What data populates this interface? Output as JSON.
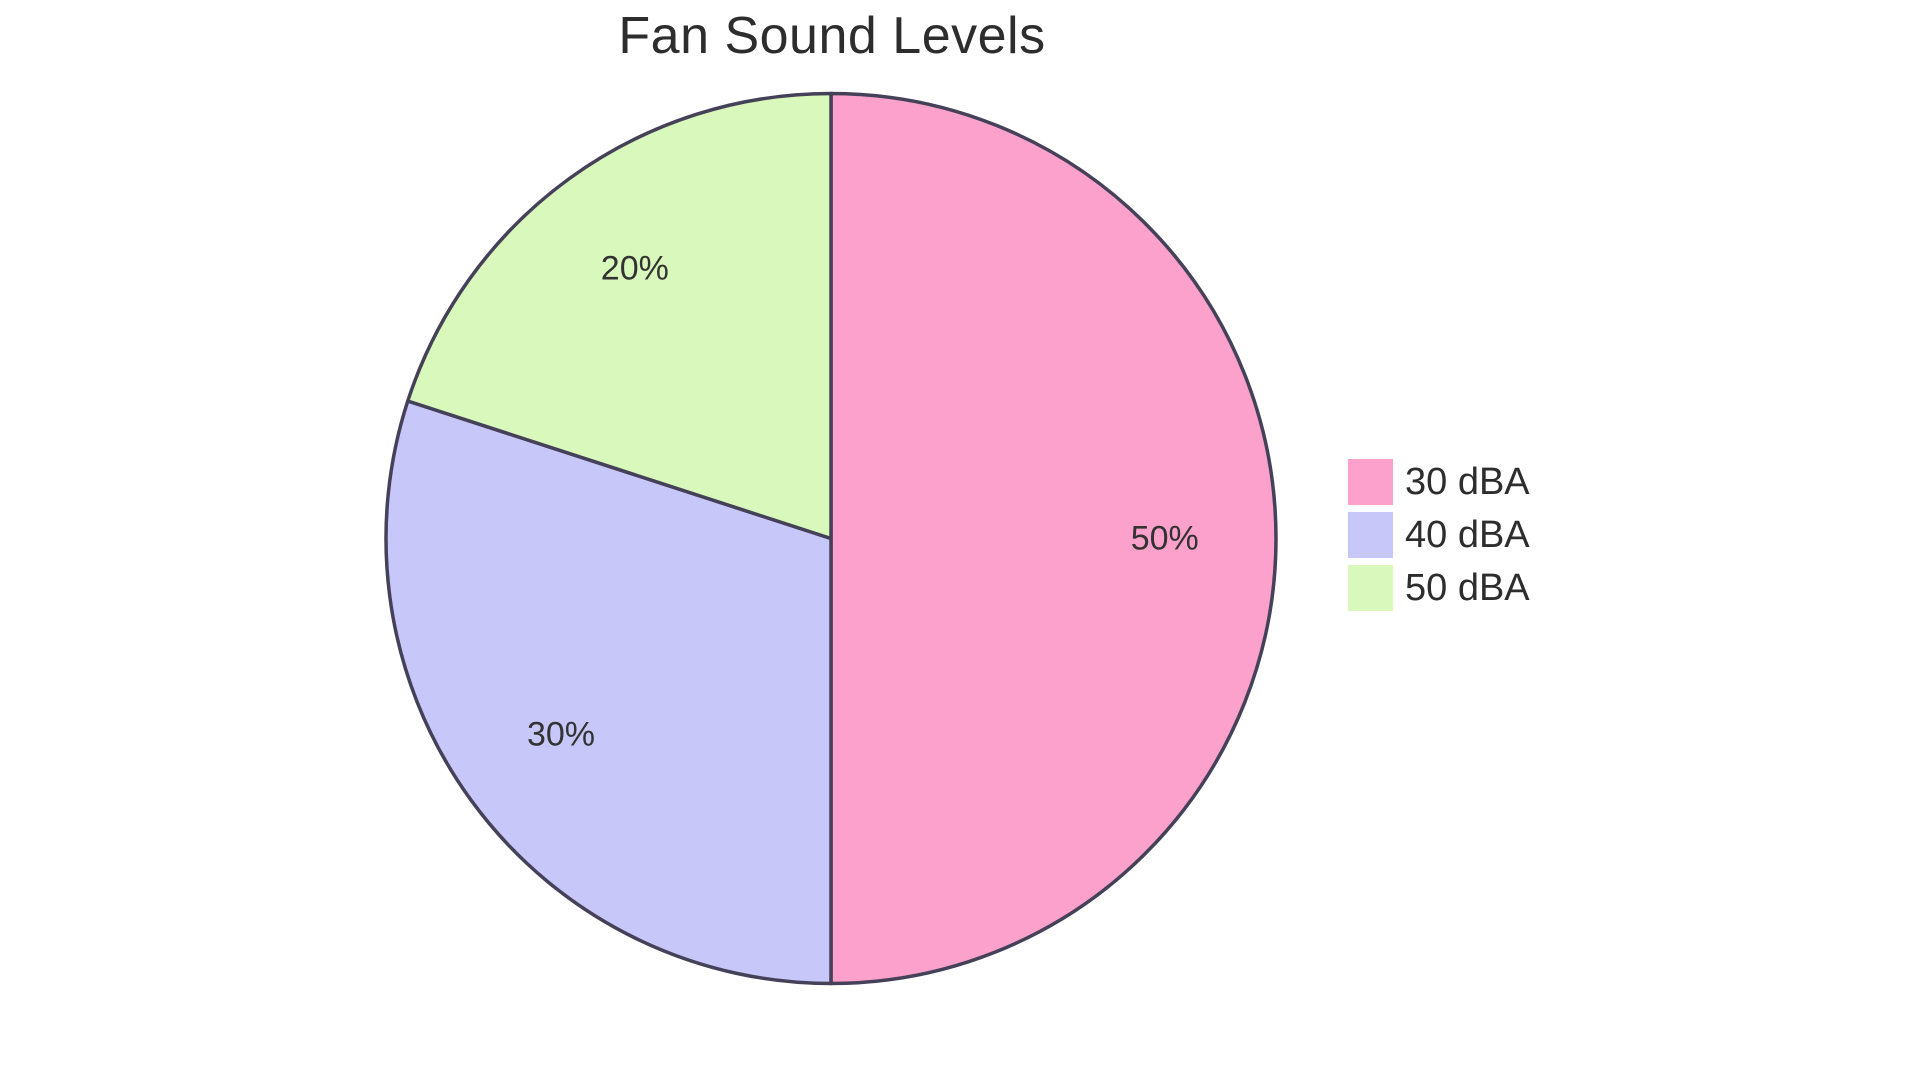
{
  "chart_data": {
    "type": "pie",
    "title": "Fan Sound Levels",
    "slices": [
      {
        "label": "30 dBA",
        "value": 50,
        "pct_label": "50%",
        "color": "#FBA1CB"
      },
      {
        "label": "40 dBA",
        "value": 30,
        "pct_label": "30%",
        "color": "#C8C7F9"
      },
      {
        "label": "50 dBA",
        "value": 20,
        "pct_label": "20%",
        "color": "#D9F8BC"
      }
    ],
    "start_angle": "top",
    "direction": "clockwise",
    "stroke_color": "#454159",
    "label_color": "#333333",
    "title_color": "#2D2D2D",
    "legend_text_color": "#2D2D2D",
    "legend_position": "right",
    "background": "#FFFFFF"
  }
}
